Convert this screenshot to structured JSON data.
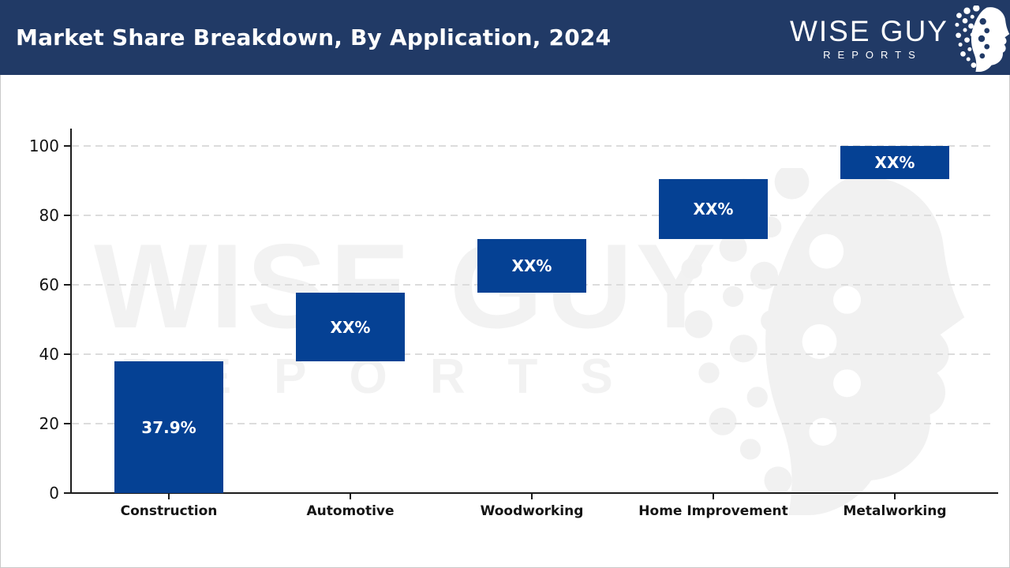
{
  "header": {
    "title": "Market Share Breakdown, By Application, 2024",
    "background_color": "#213A66"
  },
  "logo": {
    "line1": "WISE GUY",
    "line2": "REPORTS"
  },
  "watermark": {
    "line1": "WISE GUY",
    "line2": "REPORTS"
  },
  "chart_data": {
    "type": "bar",
    "subtype": "waterfall",
    "title": "Market Share Breakdown, By Application, 2024",
    "xlabel": "",
    "ylabel": "",
    "ylim": [
      0,
      105
    ],
    "yticks": [
      0,
      20,
      40,
      60,
      80,
      100
    ],
    "grid": true,
    "legend": false,
    "bar_color": "#054194",
    "value_label_color": "#FFFFFF",
    "categories": [
      "Construction",
      "Automotive",
      "Woodworking",
      "Home Improvement",
      "Metalworking"
    ],
    "segments": [
      {
        "category": "Construction",
        "start": 0,
        "end": 37.9,
        "label": "37.9%"
      },
      {
        "category": "Automotive",
        "start": 37.9,
        "end": 57.7,
        "label": "XX%"
      },
      {
        "category": "Woodworking",
        "start": 57.7,
        "end": 73.2,
        "label": "XX%"
      },
      {
        "category": "Home Improvement",
        "start": 73.2,
        "end": 90.5,
        "label": "XX%"
      },
      {
        "category": "Metalworking",
        "start": 90.5,
        "end": 100,
        "label": "XX%"
      }
    ]
  }
}
